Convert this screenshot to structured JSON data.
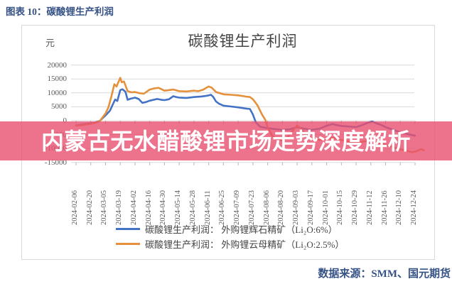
{
  "header": {
    "caption": "图表 10：碳酸锂生产利润"
  },
  "banner": {
    "text": "内蒙古无水醋酸锂市场走势深度解析",
    "bg_color": "rgba(232,80,111,0.8)",
    "text_color": "#ffffff"
  },
  "source": {
    "text": "数据来源：SMM、国元期货"
  },
  "colors": {
    "accent_blue": "#365285",
    "grid": "#d9d9d9",
    "axis_text": "#595959",
    "title_text": "#454545",
    "series_blue": "#4472c4",
    "series_orange": "#e5913c"
  },
  "chart_data": {
    "type": "line",
    "title": "碳酸锂生产利润",
    "y_unit": "元",
    "xlabel": "",
    "ylabel": "",
    "ylim": [
      -15000,
      20000
    ],
    "y_ticks": [
      20000,
      15000,
      10000,
      5000,
      0,
      -5000,
      -10000,
      -15000
    ],
    "grid": true,
    "legend_position": "bottom",
    "x_unit": "tick index (0 = 2024-02-06, 1 tick = 14 days)",
    "x_tick_labels": [
      "2024-02-06",
      "2024-02-20",
      "2024-03-05",
      "2024-03-19",
      "2024-04-02",
      "2024-04-16",
      "2024-04-30",
      "2024-05-14",
      "2024-05-28",
      "2024-06-11",
      "2024-06-25",
      "2024-07-09",
      "2024-07-23",
      "2024-08-06",
      "2024-08-20",
      "2024-09-03",
      "2024-09-17",
      "2024-10-01",
      "2024-10-15",
      "2024-10-29",
      "2024-11-12",
      "2024-11-26",
      "2024-12-10",
      "2024-12-24"
    ],
    "series": [
      {
        "name": "碳酸锂生产利润： 外购锂辉石精矿（Li₂O:6%）",
        "color": "#4472c4",
        "points": [
          [
            0,
            -1700
          ],
          [
            0.4,
            -1400
          ],
          [
            0.8,
            -1100
          ],
          [
            1.2,
            -800
          ],
          [
            1.6,
            -100
          ],
          [
            2,
            1900
          ],
          [
            2.3,
            3600
          ],
          [
            2.5,
            5900
          ],
          [
            2.65,
            7600
          ],
          [
            2.8,
            7100
          ],
          [
            3.0,
            11000
          ],
          [
            3.15,
            11300
          ],
          [
            3.35,
            10400
          ],
          [
            3.5,
            7500
          ],
          [
            3.7,
            7900
          ],
          [
            4,
            8300
          ],
          [
            4.25,
            7800
          ],
          [
            4.5,
            6400
          ],
          [
            4.75,
            6700
          ],
          [
            5,
            7200
          ],
          [
            5.5,
            7800
          ],
          [
            5.8,
            7500
          ],
          [
            6,
            7400
          ],
          [
            6.3,
            7700
          ],
          [
            6.6,
            8800
          ],
          [
            6.8,
            8500
          ],
          [
            7,
            8300
          ],
          [
            7.5,
            8200
          ],
          [
            8,
            8500
          ],
          [
            8.5,
            8700
          ],
          [
            8.8,
            8900
          ],
          [
            9,
            9100
          ],
          [
            9.15,
            9300
          ],
          [
            9.3,
            8600
          ],
          [
            9.5,
            6900
          ],
          [
            9.7,
            6100
          ],
          [
            10,
            5400
          ],
          [
            10.5,
            5100
          ],
          [
            11,
            4800
          ],
          [
            11.5,
            4400
          ],
          [
            11.8,
            4200
          ],
          [
            12,
            2200
          ],
          [
            12.2,
            -600
          ],
          [
            12.5,
            -2200
          ],
          [
            13,
            -2700
          ],
          [
            13.5,
            -3000
          ],
          [
            14,
            -3300
          ],
          [
            14.5,
            -3100
          ],
          [
            15,
            -2300
          ],
          [
            15.5,
            -2900
          ],
          [
            16,
            -3300
          ],
          [
            16.5,
            -2900
          ],
          [
            17,
            -1800
          ],
          [
            17.4,
            -1200
          ],
          [
            17.7,
            -1600
          ],
          [
            18,
            -1900
          ],
          [
            18.5,
            -2100
          ],
          [
            19,
            -2300
          ],
          [
            19.4,
            -1600
          ],
          [
            19.8,
            -700
          ],
          [
            20.1,
            -300
          ],
          [
            20.4,
            -1000
          ],
          [
            20.7,
            -1500
          ],
          [
            21,
            -2300
          ],
          [
            21.5,
            -3300
          ],
          [
            22,
            -4100
          ],
          [
            22.5,
            -4800
          ],
          [
            23,
            -5400
          ]
        ]
      },
      {
        "name": "碳酸锂生产利润： 外购锂云母精矿（Li₂O:2.5%）",
        "color": "#e5913c",
        "points": [
          [
            0,
            -1800
          ],
          [
            0.4,
            -1600
          ],
          [
            0.8,
            -1300
          ],
          [
            1.2,
            -900
          ],
          [
            1.6,
            -200
          ],
          [
            2,
            2600
          ],
          [
            2.2,
            4800
          ],
          [
            2.4,
            8800
          ],
          [
            2.6,
            13100
          ],
          [
            2.75,
            12300
          ],
          [
            3.0,
            15400
          ],
          [
            3.1,
            13800
          ],
          [
            3.25,
            14100
          ],
          [
            3.5,
            10600
          ],
          [
            3.75,
            10200
          ],
          [
            4,
            10300
          ],
          [
            4.3,
            9900
          ],
          [
            4.6,
            9700
          ],
          [
            5,
            11200
          ],
          [
            5.3,
            11600
          ],
          [
            5.6,
            11800
          ],
          [
            6,
            10800
          ],
          [
            6.3,
            11000
          ],
          [
            6.6,
            11200
          ],
          [
            7,
            10600
          ],
          [
            7.5,
            10500
          ],
          [
            8,
            10800
          ],
          [
            8.3,
            10600
          ],
          [
            8.6,
            11100
          ],
          [
            9,
            12300
          ],
          [
            9.2,
            11900
          ],
          [
            9.5,
            10300
          ],
          [
            10,
            9500
          ],
          [
            10.5,
            9300
          ],
          [
            11,
            9100
          ],
          [
            11.5,
            8700
          ],
          [
            11.8,
            8500
          ],
          [
            12,
            7700
          ],
          [
            12.3,
            5600
          ],
          [
            12.6,
            2400
          ],
          [
            12.85,
            200
          ],
          [
            13,
            -2400
          ],
          [
            13.3,
            -5300
          ],
          [
            13.6,
            -6600
          ],
          [
            14,
            -7100
          ],
          [
            14.3,
            -6200
          ],
          [
            14.6,
            -4200
          ],
          [
            15,
            -1700
          ],
          [
            15.3,
            -3100
          ],
          [
            15.6,
            -5100
          ],
          [
            16,
            -6300
          ],
          [
            16.5,
            -6900
          ],
          [
            17,
            -6500
          ],
          [
            17.4,
            -6100
          ],
          [
            18,
            -6900
          ],
          [
            18.5,
            -7500
          ],
          [
            19,
            -7900
          ],
          [
            19.5,
            -7500
          ],
          [
            20,
            -7100
          ],
          [
            20.5,
            -7900
          ],
          [
            21,
            -8700
          ],
          [
            21.5,
            -9500
          ],
          [
            22,
            -10300
          ],
          [
            22.4,
            -10800
          ],
          [
            22.8,
            -11300
          ],
          [
            23.1,
            -11000
          ],
          [
            23.4,
            -10200
          ],
          [
            23.6,
            -10600
          ]
        ]
      }
    ]
  }
}
